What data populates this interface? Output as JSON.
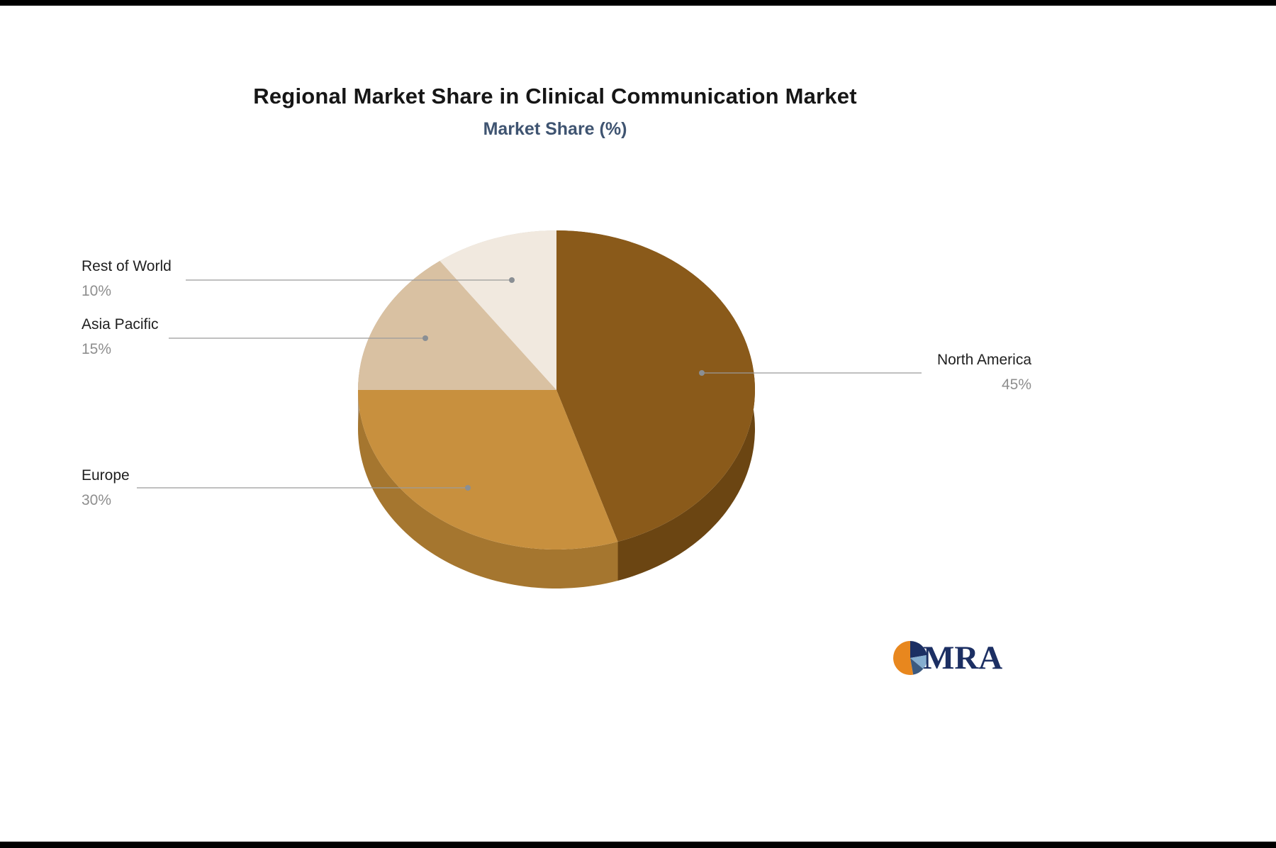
{
  "header": {
    "title": "Regional Market Share in Clinical Communication Market",
    "subtitle": "Market Share (%)"
  },
  "chart_data": {
    "type": "pie",
    "title": "Regional Market Share in Clinical Communication Market",
    "subtitle": "Market Share (%)",
    "unit": "%",
    "direction": "clockwise",
    "start_angle_deg": 0,
    "style": "3d",
    "slices": [
      {
        "label": "North America",
        "value": 45,
        "value_label": "45%",
        "color": "#8a5a1a",
        "side_color": "#6b4512"
      },
      {
        "label": "Europe",
        "value": 30,
        "value_label": "30%",
        "color": "#c8903e",
        "side_color": "#a5762f"
      },
      {
        "label": "Asia Pacific",
        "value": 15,
        "value_label": "15%",
        "color": "#d9c1a2",
        "side_color": "#b29c80"
      },
      {
        "label": "Rest of World",
        "value": 10,
        "value_label": "10%",
        "color": "#f1e9df",
        "side_color": "#d3cabc"
      }
    ],
    "leader_line_color": "#9b9b9b",
    "leader_dot_color": "#8a8f94"
  },
  "logo": {
    "text": "MRA",
    "text_color": "#1c2f63",
    "icon_colors": [
      "#1c2f63",
      "#86aed0",
      "#3c5a80",
      "#e8871e"
    ]
  }
}
